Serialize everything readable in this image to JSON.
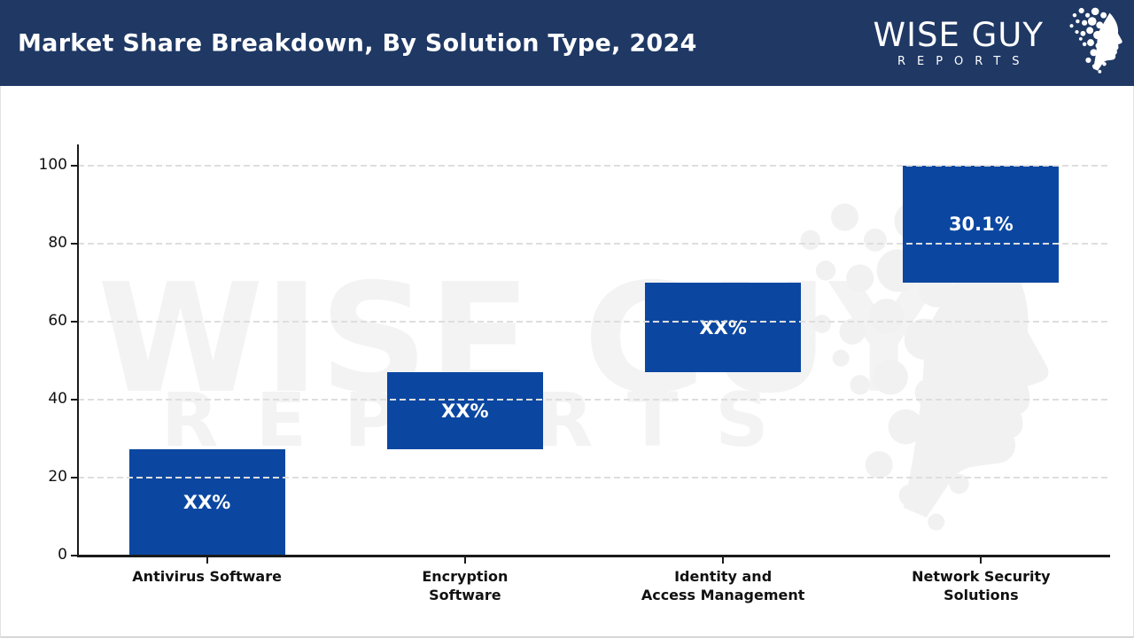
{
  "header": {
    "title": "Market Share Breakdown, By Solution Type, 2024",
    "logo": {
      "name": "WISE GUY",
      "sub": "REPORTS"
    }
  },
  "watermark": {
    "name": "WISE GUY",
    "sub": "REPORTS"
  },
  "chart_data": {
    "type": "bar",
    "subtype": "waterfall-floating-bars",
    "title": "Market Share Breakdown, By Solution Type, 2024",
    "xlabel": "",
    "ylabel": "",
    "ylim": [
      0,
      105
    ],
    "yticks": [
      0,
      20,
      40,
      60,
      80,
      100
    ],
    "grid": "horizontal-dashed",
    "legend": "none",
    "bar_color": "#0b47a1",
    "bar_label_color": "#ffffff",
    "categories": [
      "Antivirus Software",
      "Encryption Software",
      "Identity and Access Management",
      "Network Security Solutions"
    ],
    "category_label_lines": [
      [
        "Antivirus Software"
      ],
      [
        "Encryption",
        "Software"
      ],
      [
        "Identity and",
        "Access Management"
      ],
      [
        "Network Security",
        "Solutions"
      ]
    ],
    "segments": [
      {
        "category": "Antivirus Software",
        "start": 0,
        "end": 27.3,
        "label": "XX%"
      },
      {
        "category": "Encryption Software",
        "start": 27.3,
        "end": 47,
        "label": "XX%"
      },
      {
        "category": "Identity and Access Management",
        "start": 47,
        "end": 70,
        "label": "XX%"
      },
      {
        "category": "Network Security Solutions",
        "start": 70,
        "end": 100.1,
        "label": "30.1%"
      }
    ]
  }
}
